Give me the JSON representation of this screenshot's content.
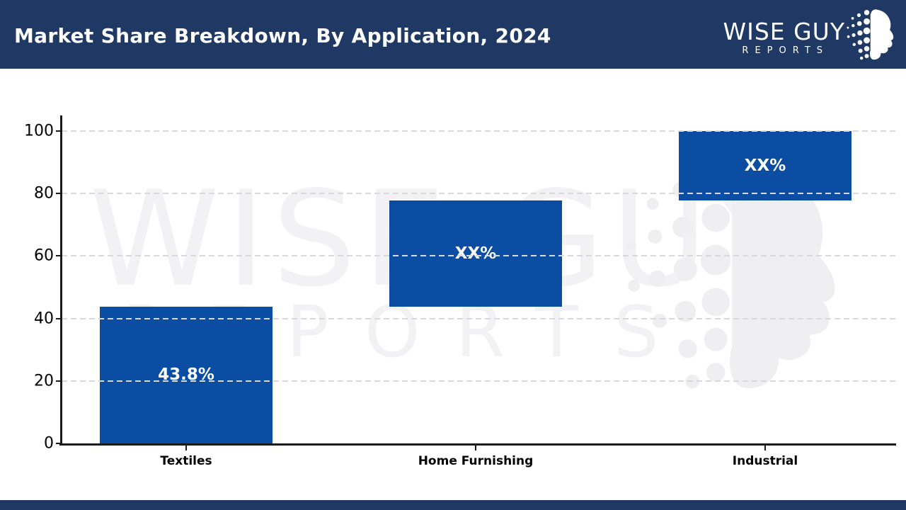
{
  "header": {
    "title": "Market Share Breakdown, By Application, 2024",
    "logo": {
      "line1": "WISE GUY",
      "line2": "REPORTS"
    }
  },
  "watermark": {
    "line1": "WISE GUY",
    "line2": "REPORTS"
  },
  "colors": {
    "header_bg": "#1f3864",
    "footer_bg": "#1f3864",
    "bar": "#0b4da2",
    "grid": "#d9d9d9",
    "axis": "#1a1a1a",
    "watermark": "#f2f2f4",
    "bar_label": "#ffffff"
  },
  "chart_data": {
    "type": "bar",
    "subtype": "waterfall-floating-bars",
    "title": "Market Share Breakdown, By Application, 2024",
    "categories": [
      "Textiles",
      "Home Furnishing",
      "Industrial"
    ],
    "segments": [
      {
        "category": "Textiles",
        "start": 0,
        "end": 43.8,
        "label": "43.8%"
      },
      {
        "category": "Home Furnishing",
        "start": 43.8,
        "end": 77.8,
        "label": "XX%"
      },
      {
        "category": "Industrial",
        "start": 77.8,
        "end": 100,
        "label": "XX%"
      }
    ],
    "xlabel": "",
    "ylabel": "",
    "ylim": [
      0,
      100
    ],
    "yticks": [
      0,
      20,
      40,
      60,
      80,
      100
    ],
    "grid": "horizontal-dashed, drawn above bars",
    "legend": "none"
  }
}
